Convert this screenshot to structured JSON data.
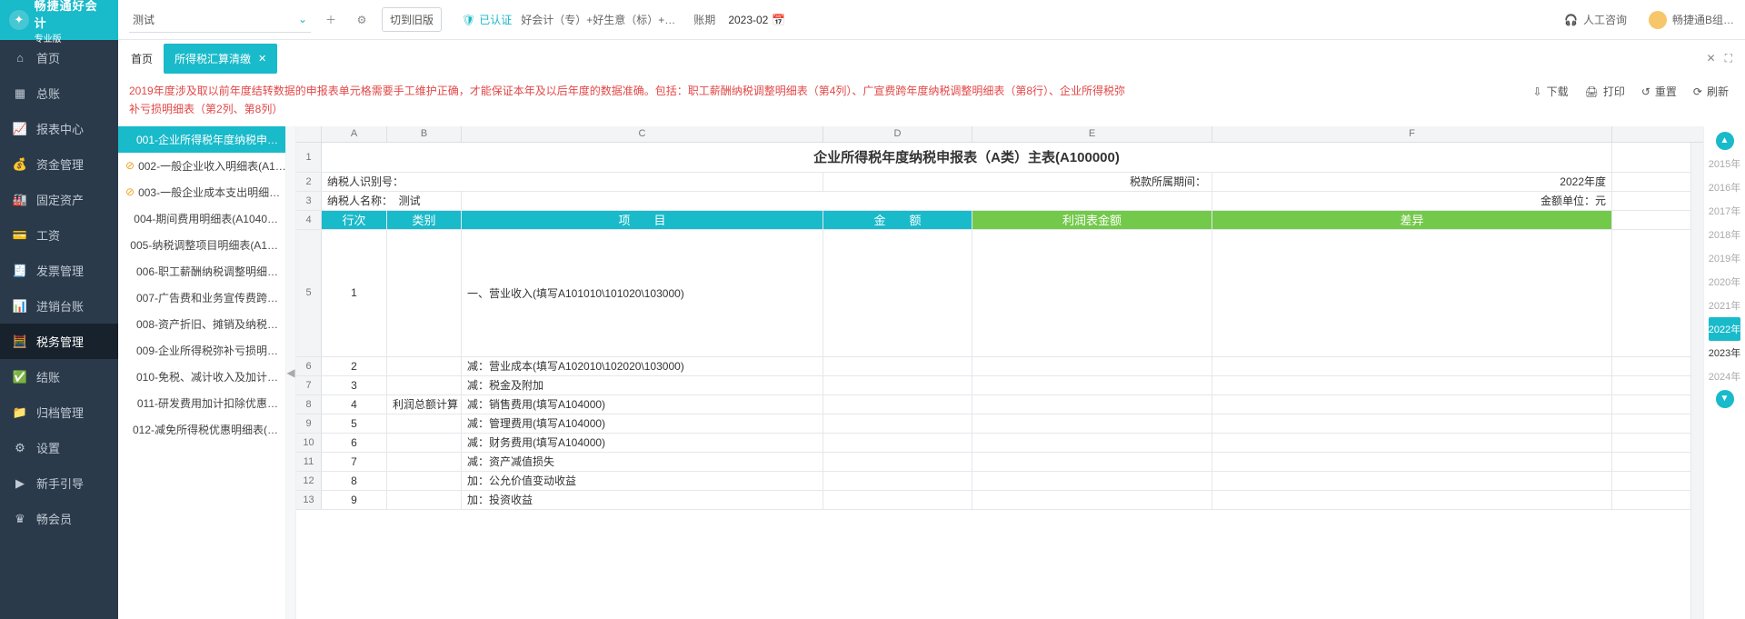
{
  "brand": {
    "name": "畅捷通好会计",
    "sub": "专业版"
  },
  "nav": [
    {
      "icon": "home",
      "label": "首页"
    },
    {
      "icon": "ledger",
      "label": "总账"
    },
    {
      "icon": "chart",
      "label": "报表中心"
    },
    {
      "icon": "fund",
      "label": "资金管理"
    },
    {
      "icon": "asset",
      "label": "固定资产"
    },
    {
      "icon": "salary",
      "label": "工资"
    },
    {
      "icon": "invoice",
      "label": "发票管理"
    },
    {
      "icon": "pur",
      "label": "进销台账"
    },
    {
      "icon": "tax",
      "label": "税务管理"
    },
    {
      "icon": "close",
      "label": "结账"
    },
    {
      "icon": "archive",
      "label": "归档管理"
    },
    {
      "icon": "setting",
      "label": "设置"
    },
    {
      "icon": "guide",
      "label": "新手引导"
    },
    {
      "icon": "vip",
      "label": "畅会员"
    }
  ],
  "nav_active_index": 8,
  "topbar": {
    "company": "测试",
    "old_version_btn": "切到旧版",
    "certified": "已认证",
    "packages": "好会计（专）+好生意（标）+…",
    "period_label": "账期",
    "period_value": "2023-02",
    "support": "人工咨询",
    "user": "畅捷通B组…"
  },
  "tabs": {
    "home": "首页",
    "active": "所得税汇算清缴"
  },
  "notice": "2019年度涉及取以前年度结转数据的申报表单元格需要手工维护正确，才能保证本年及以后年度的数据准确。包括：职工薪酬纳税调整明细表（第4列）、广宣费跨年度纳税调整明细表（第8行）、企业所得税弥补亏损明细表（第2列、第8列）",
  "toolbar": {
    "download": "下载",
    "print": "打印",
    "reset": "重置",
    "refresh": "刷新"
  },
  "forms": [
    "001-企业所得税年度纳税申…",
    "002-一般企业收入明细表(A1…",
    "003-一般企业成本支出明细…",
    "004-期间费用明细表(A1040…",
    "005-纳税调整项目明细表(A1…",
    "006-职工薪酬纳税调整明细…",
    "007-广告费和业务宣传费跨…",
    "008-资产折旧、摊销及纳税…",
    "009-企业所得税弥补亏损明…",
    "010-免税、减计收入及加计…",
    "011-研发费用加计扣除优惠…",
    "012-减免所得税优惠明细表(…"
  ],
  "forms_selected": 0,
  "forms_warn": [
    1,
    2
  ],
  "sheet": {
    "cols": [
      "A",
      "B",
      "C",
      "D",
      "E",
      "F"
    ],
    "title": "企业所得税年度纳税申报表（A类）主表(A100000)",
    "r2": {
      "left": "纳税人识别号：",
      "right_lbl": "税款所属期间：",
      "right_val": "2022年度"
    },
    "r3": {
      "left": "纳税人名称：",
      "left_val": "测试",
      "right": "金额单位：元"
    },
    "hdr": {
      "A": "行次",
      "B": "类别",
      "C": "项　　目",
      "D": "金　　额",
      "E": "利润表金额",
      "F": "差异"
    },
    "body": [
      {
        "n": "5",
        "A": "1",
        "B": "",
        "C": "一、营业收入(填写A101010\\101020\\103000)"
      },
      {
        "n": "6",
        "A": "2",
        "B_merge": "利润总额计算",
        "C": "减：营业成本(填写A102010\\102020\\103000)"
      },
      {
        "n": "7",
        "A": "3",
        "C": "减：税金及附加"
      },
      {
        "n": "8",
        "A": "4",
        "C": "减：销售费用(填写A104000)"
      },
      {
        "n": "9",
        "A": "5",
        "C": "减：管理费用(填写A104000)"
      },
      {
        "n": "10",
        "A": "6",
        "C": "减：财务费用(填写A104000)"
      },
      {
        "n": "11",
        "A": "7",
        "C": "减：资产减值损失"
      },
      {
        "n": "12",
        "A": "8",
        "C": "加：公允价值变动收益"
      },
      {
        "n": "13",
        "A": "9",
        "C": "加：投资收益"
      }
    ]
  },
  "years": {
    "list": [
      "2015年",
      "2016年",
      "2017年",
      "2018年",
      "2019年",
      "2020年",
      "2021年",
      "2022年",
      "2023年",
      "2024年"
    ],
    "active": "2022年",
    "near": "2023年"
  },
  "colors": {
    "primary": "#19baca",
    "green": "#73c94a",
    "warn": "#e34747"
  }
}
